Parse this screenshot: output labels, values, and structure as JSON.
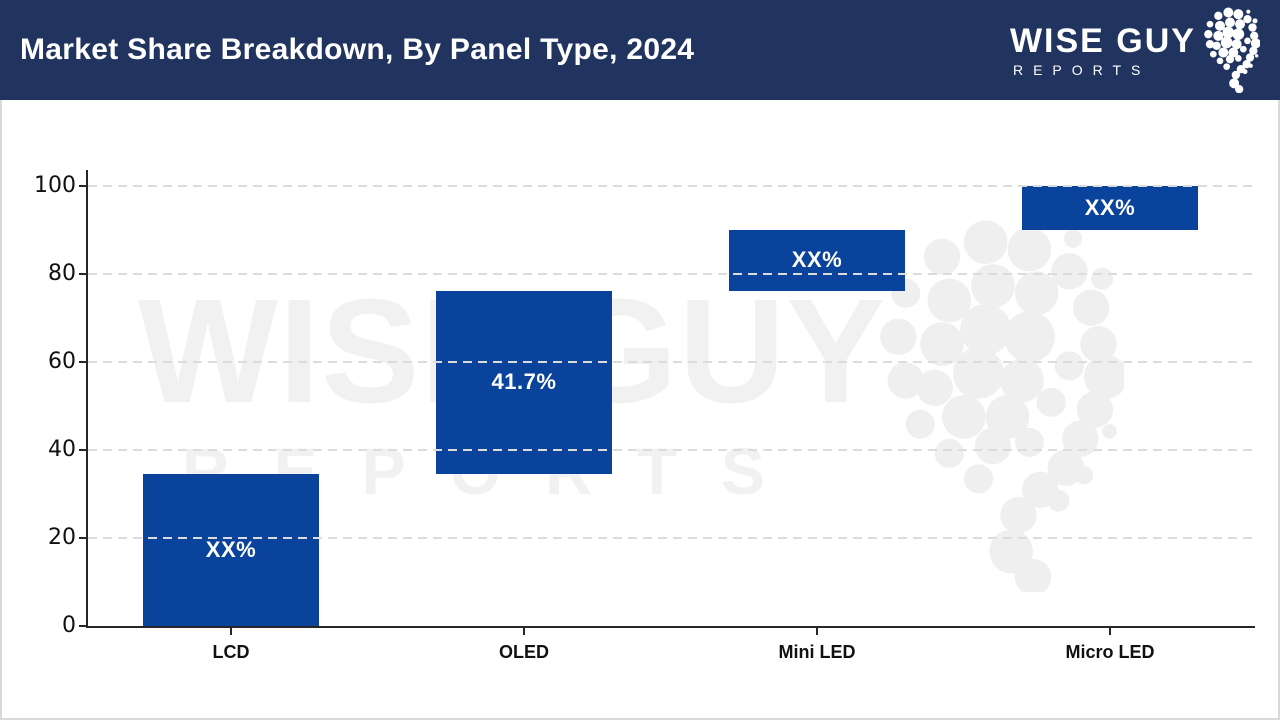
{
  "header": {
    "title": "Market Share Breakdown, By Panel Type, 2024",
    "brand": {
      "name": "WISE GUY",
      "tagline": "REPORTS"
    }
  },
  "watermark": {
    "line1": "WISE GUY",
    "line2": "REPORTS"
  },
  "colors": {
    "header_bg": "#21335f",
    "bar_fill": "#0a439b",
    "grid_line": "#dcdcdc",
    "axis_line": "#262626",
    "bar_label_text": "#ffffff",
    "tick_label_text": "#111111"
  },
  "chart_data": {
    "type": "bar",
    "subtype": "waterfall",
    "title": "Market Share Breakdown, By Panel Type, 2024",
    "categories": [
      "LCD",
      "OLED",
      "Mini LED",
      "Micro LED"
    ],
    "segments": [
      {
        "category": "LCD",
        "start": 0,
        "end": 34.5,
        "value_label": "XX%"
      },
      {
        "category": "OLED",
        "start": 34.5,
        "end": 76.2,
        "value_label": "41.7%"
      },
      {
        "category": "Mini LED",
        "start": 76.2,
        "end": 90,
        "value_label": "XX%"
      },
      {
        "category": "Micro LED",
        "start": 90,
        "end": 100,
        "value_label": "XX%"
      }
    ],
    "values": [
      34.5,
      41.7,
      13.8,
      10.0
    ],
    "y_ticks": [
      0,
      20,
      40,
      60,
      80,
      100
    ],
    "ylim": [
      0,
      100
    ],
    "xlabel": "",
    "ylabel": "",
    "grid": "horizontal-dashed",
    "legend": "none"
  }
}
